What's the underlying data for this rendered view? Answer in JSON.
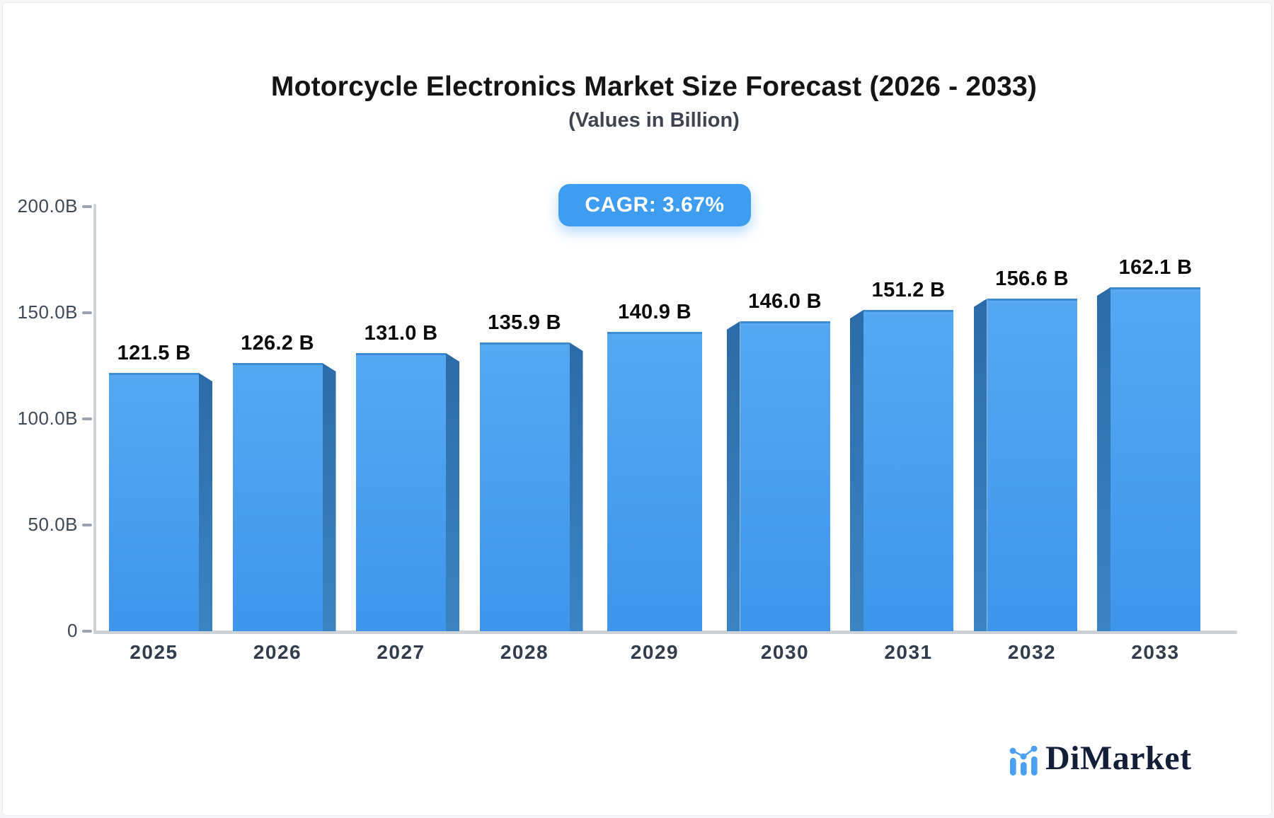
{
  "header": {
    "title": "Motorcycle Electronics Market Size Forecast (2026 - 2033)",
    "subtitle": "(Values in Billion)",
    "badge_label": "CAGR: 3.67%"
  },
  "chart_data": {
    "type": "bar",
    "title": "Motorcycle Electronics Market Size Forecast (2026 - 2033)",
    "subtitle": "(Values in Billion)",
    "badge": "CAGR: 3.67%",
    "categories": [
      "2025",
      "2026",
      "2027",
      "2028",
      "2029",
      "2030",
      "2031",
      "2032",
      "2033"
    ],
    "values": [
      121.5,
      126.2,
      131.0,
      135.9,
      140.9,
      146.0,
      151.2,
      156.6,
      162.1
    ],
    "value_labels": [
      "121.5 B",
      "126.2 B",
      "131.0 B",
      "135.9 B",
      "140.9 B",
      "146.0 B",
      "151.2 B",
      "156.6 B",
      "162.1 B"
    ],
    "unit": "B",
    "xlabel": "",
    "ylabel": "",
    "ylim": [
      0,
      200
    ],
    "yticks": [
      {
        "label": "200.0B",
        "value": 200
      },
      {
        "label": "150.0B",
        "value": 150
      },
      {
        "label": "100.0B",
        "value": 100
      },
      {
        "label": "50.0B",
        "value": 50
      },
      {
        "label": "0",
        "value": 0
      }
    ],
    "grid": false,
    "legend": null,
    "bar_style": "3d-beveled"
  },
  "branding": {
    "logo_text": "DiMarket",
    "logo_icon": "mini-bar-chart-icon"
  },
  "colors": {
    "accent_blue": "#3E9CF1",
    "bar_face_top": "#55A8F2",
    "bar_face_bottom": "#3E95EC",
    "bar_face_edge": "#3D8BD4",
    "bar_side_top": "#2B6CA8",
    "bar_side_bottom": "#3A84C4",
    "axis_line": "#CDD2D7",
    "tick_mark": "#9AA3AD",
    "y_label_text": "#3F4956",
    "x_label_text": "#323D4C",
    "value_label_text": "#0B0B0B",
    "badge_bg": "#3E9CF1",
    "badge_text": "#FFFFFF",
    "title_text": "#141414",
    "subtitle_text": "#3D4450",
    "logo_navy": "#131F38",
    "logo_blue": "#4AA0F2",
    "card_bg": "#FFFFFF",
    "page_bg": "#F6F6F8"
  }
}
